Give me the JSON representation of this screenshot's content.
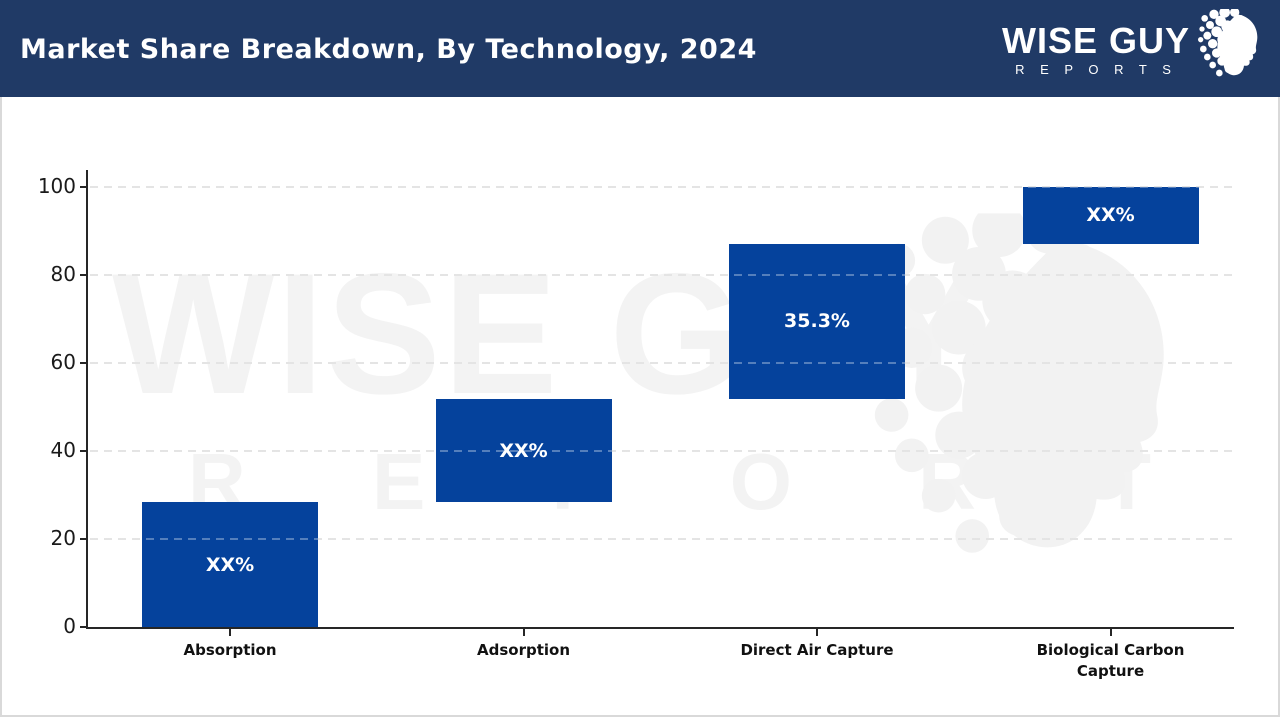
{
  "header": {
    "title": "Market Share Breakdown, By Technology, 2024",
    "logo": {
      "line1": "WISE GUY",
      "line2": "R E P O R T S"
    }
  },
  "watermark": {
    "line1": "WISE GUY",
    "line2": "R E P O R T S"
  },
  "colors": {
    "header_bg": "#203A66",
    "bar": "#05429C",
    "grid": "#D8D8D8",
    "axis": "#262626",
    "bar_label": "#FFFFFF"
  },
  "chart_data": {
    "type": "bar",
    "subtype": "waterfall",
    "title": "Market Share Breakdown, By Technology, 2024",
    "categories": [
      "Absorption",
      "Adsorption",
      "Direct Air Capture",
      "Biological Carbon Capture"
    ],
    "bars": [
      {
        "category": "Absorption",
        "start": 0,
        "end": 28.4,
        "label": "XX%"
      },
      {
        "category": "Adsorption",
        "start": 28.4,
        "end": 51.8,
        "label": "XX%"
      },
      {
        "category": "Direct Air Capture",
        "start": 51.8,
        "end": 87.1,
        "label": "35.3%"
      },
      {
        "category": "Biological Carbon Capture",
        "start": 87.1,
        "end": 100,
        "label": "XX%"
      }
    ],
    "xlabel": "",
    "ylabel": "",
    "ylim": [
      0,
      100
    ],
    "yticks": [
      0,
      20,
      40,
      60,
      80,
      100
    ],
    "grid": true,
    "grid_style": "dashed",
    "legend": false,
    "bar_color": "#05429C",
    "label_color": "#FFFFFF"
  }
}
